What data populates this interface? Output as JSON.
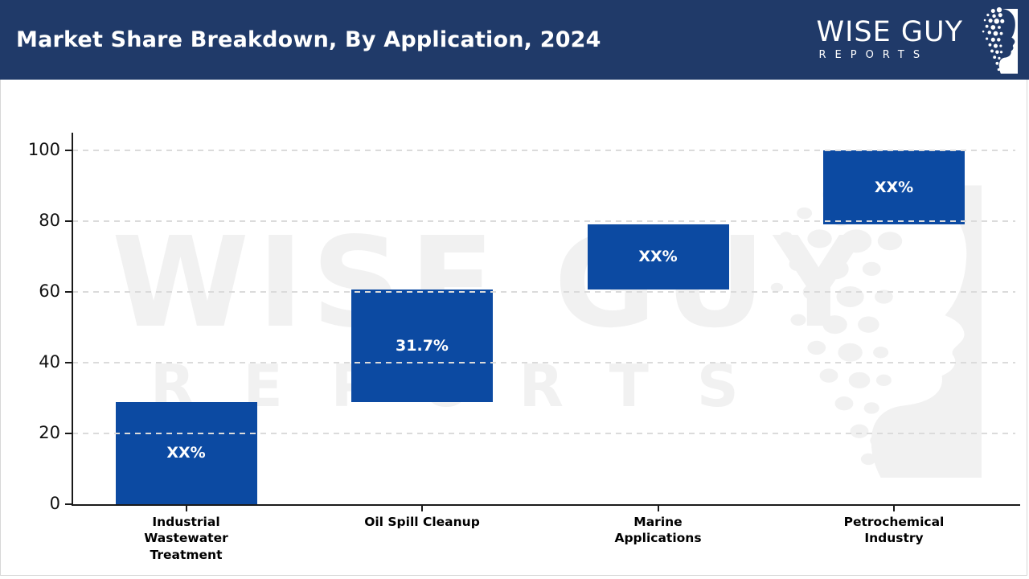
{
  "header": {
    "title": "Market Share Breakdown, By Application, 2024",
    "bg_color": "#203A69",
    "logo": {
      "line1": "WISE GUY",
      "line2": "REPORTS"
    }
  },
  "watermark": {
    "line1": "WISE GUY",
    "line2": "REPORTS",
    "color": "#F1F1F1"
  },
  "chart_data": {
    "type": "bar",
    "subtype": "waterfall",
    "title": "Market Share Breakdown, By Application, 2024",
    "xlabel": "",
    "ylabel": "",
    "ylim": [
      0,
      105
    ],
    "yticks": [
      0,
      20,
      40,
      60,
      80,
      100
    ],
    "grid": "horizontal dashed, drawn over bars",
    "legend": false,
    "bar_color": "#0C4AA2",
    "categories": [
      "Industrial Wastewater Treatment",
      "Oil Spill Cleanup",
      "Marine Applications",
      "Petrochemical Industry"
    ],
    "bars": [
      {
        "category": "Industrial Wastewater Treatment",
        "start": 0,
        "end": 28.9,
        "label": "XX%"
      },
      {
        "category": "Oil Spill Cleanup",
        "start": 28.9,
        "end": 60.6,
        "label": "31.7%"
      },
      {
        "category": "Marine Applications",
        "start": 60.6,
        "end": 79.2,
        "label": "XX%"
      },
      {
        "category": "Petrochemical Industry",
        "start": 79.2,
        "end": 100,
        "label": "XX%"
      }
    ]
  }
}
